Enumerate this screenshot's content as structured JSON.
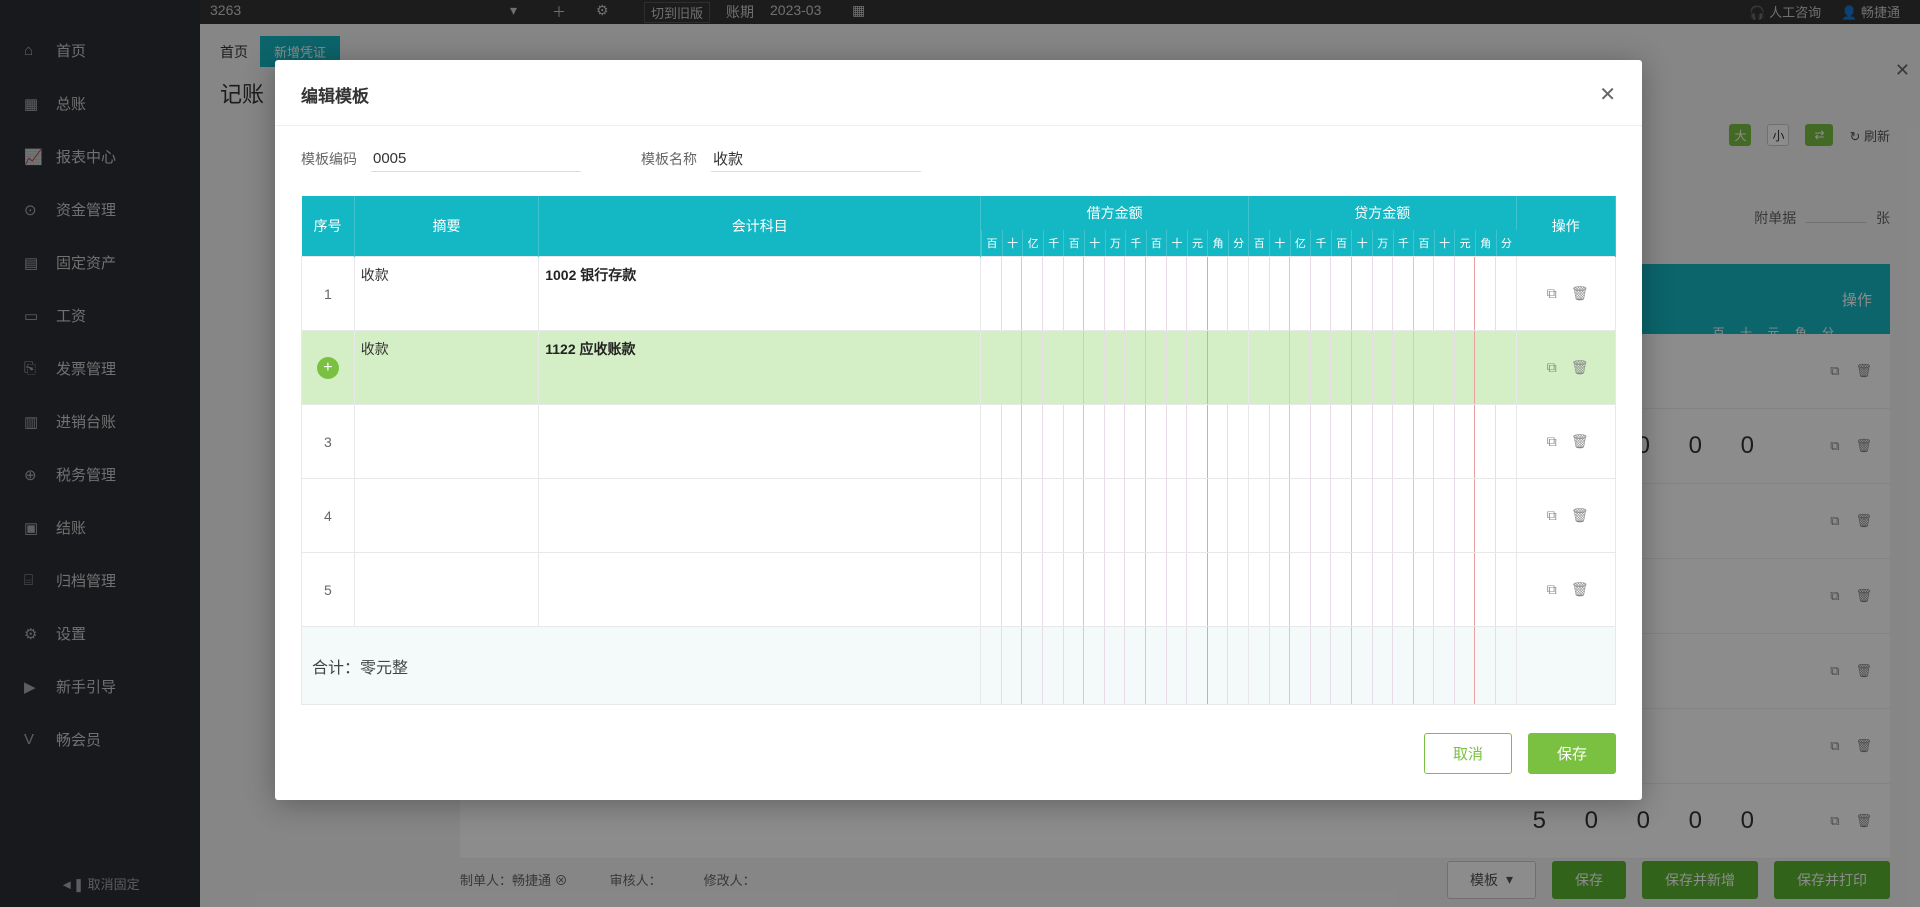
{
  "colors": {
    "teal": "#14b8c4",
    "green": "#7ac142",
    "row_hl": "#d4efc5",
    "total_bg": "#f4fafa"
  },
  "topbar": {
    "code": "3263",
    "switch": "切到旧版",
    "period_label": "账期",
    "period": "2023-03",
    "consult": "人工咨询",
    "user": "畅捷通"
  },
  "sidebar": {
    "items": [
      {
        "label": "首页",
        "ico": "home"
      },
      {
        "label": "总账",
        "ico": "ledger"
      },
      {
        "label": "报表中心",
        "ico": "report"
      },
      {
        "label": "资金管理",
        "ico": "fund"
      },
      {
        "label": "固定资产",
        "ico": "asset"
      },
      {
        "label": "工资",
        "ico": "salary"
      },
      {
        "label": "发票管理",
        "ico": "invoice"
      },
      {
        "label": "进销台账",
        "ico": "stock"
      },
      {
        "label": "税务管理",
        "ico": "tax"
      },
      {
        "label": "结账",
        "ico": "close"
      },
      {
        "label": "归档管理",
        "ico": "archive"
      },
      {
        "label": "设置",
        "ico": "settings"
      },
      {
        "label": "新手引导",
        "ico": "guide"
      },
      {
        "label": "畅会员",
        "ico": "vip"
      }
    ],
    "bottom": "◄❚ 取消固定"
  },
  "page": {
    "crumb_home": "首页",
    "crumb_tab": "新增凭证",
    "title": "记账",
    "tools": {
      "big": "大",
      "small": "小"
    },
    "refresh": "↻ 刷新",
    "attach_label": "附单据",
    "attach_unit": "张",
    "bg_head_op": "操作",
    "bg_digits": "百 十 元 角 分",
    "bg_num": "5 0 0 0 0",
    "footer": {
      "maker_l": "制单人：",
      "maker": "畅捷通 ⊗",
      "auditor_l": "审核人：",
      "modifier_l": "修改人：",
      "template": "模板",
      "save": "保存",
      "save_new": "保存并新增",
      "save_print": "保存并打印"
    }
  },
  "modal": {
    "title": "编辑模板",
    "code_label": "模板编码",
    "code_value": "0005",
    "name_label": "模板名称",
    "name_value": "收款",
    "headers": {
      "seq": "序号",
      "summary": "摘要",
      "account": "会计科目",
      "debit": "借方金额",
      "credit": "贷方金额",
      "op": "操作"
    },
    "digits": [
      "百",
      "十",
      "亿",
      "千",
      "百",
      "十",
      "万",
      "千",
      "百",
      "十",
      "元",
      "角",
      "分"
    ],
    "rows": [
      {
        "seq": "1",
        "summary": "收款",
        "account": "1002 银行存款",
        "hl": false
      },
      {
        "seq": "+",
        "summary": "收款",
        "account": "1122 应收账款",
        "hl": true
      },
      {
        "seq": "3",
        "summary": "",
        "account": "",
        "hl": false
      },
      {
        "seq": "4",
        "summary": "",
        "account": "",
        "hl": false
      },
      {
        "seq": "5",
        "summary": "",
        "account": "",
        "hl": false
      }
    ],
    "total": "合计：零元整",
    "cancel": "取消",
    "save": "保存"
  }
}
